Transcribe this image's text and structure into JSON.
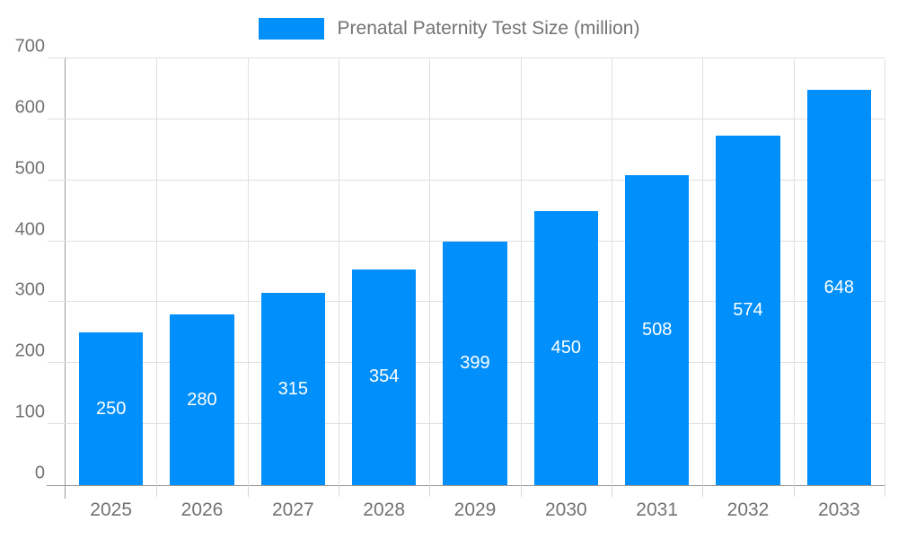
{
  "legend": {
    "label": "Prenatal Paternity Test Size (million)"
  },
  "colors": {
    "bar": "#008FFB",
    "grid": "#e0e0e0",
    "axis": "#999999",
    "text": "#737373",
    "value_label": "#ffffff"
  },
  "chart_data": {
    "type": "bar",
    "title": "Prenatal Paternity Test Size (million)",
    "categories": [
      "2025",
      "2026",
      "2027",
      "2028",
      "2029",
      "2030",
      "2031",
      "2032",
      "2033"
    ],
    "values": [
      250,
      280,
      315,
      354,
      399,
      450,
      508,
      574,
      648
    ],
    "value_labels": [
      "250",
      "280",
      "315",
      "354",
      "399",
      "450",
      "508",
      "574",
      "648"
    ],
    "xlabel": "",
    "ylabel": "",
    "ylim": [
      0,
      700
    ],
    "yticks": [
      0,
      100,
      200,
      300,
      400,
      500,
      600,
      700
    ],
    "ytick_labels": [
      "0",
      "100",
      "200",
      "300",
      "400",
      "500",
      "600",
      "700"
    ],
    "grid": true,
    "legend_position": "top"
  }
}
